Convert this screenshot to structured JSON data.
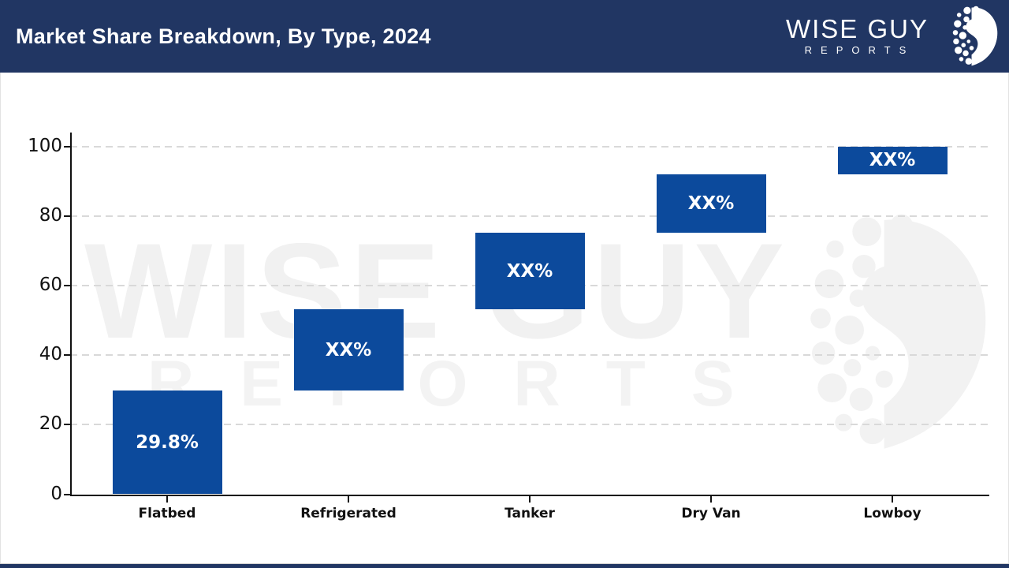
{
  "header": {
    "title": "Market Share Breakdown, By Type, 2024",
    "logo": {
      "line1": "WISE GUY",
      "line2": "REPORTS"
    }
  },
  "watermark": {
    "line1": "WISE GUY",
    "line2": "REPORTS"
  },
  "chart_data": {
    "type": "bar",
    "subtype": "waterfall",
    "title": "Market Share Breakdown, By Type, 2024",
    "categories": [
      "Flatbed",
      "Refrigerated",
      "Tanker",
      "Dry Van",
      "Lowboy"
    ],
    "segments": [
      {
        "category": "Flatbed",
        "start": 0,
        "end": 29.8,
        "label": "29.8%"
      },
      {
        "category": "Refrigerated",
        "start": 29.8,
        "end": 53.2,
        "label": "XX%"
      },
      {
        "category": "Tanker",
        "start": 53.2,
        "end": 75.2,
        "label": "XX%"
      },
      {
        "category": "Dry Van",
        "start": 75.2,
        "end": 92.1,
        "label": "XX%"
      },
      {
        "category": "Lowboy",
        "start": 92.1,
        "end": 100,
        "label": "XX%"
      }
    ],
    "ylabel": "",
    "xlabel": "",
    "yticks": [
      0,
      20,
      40,
      60,
      80,
      100
    ],
    "ylim": [
      0,
      104
    ],
    "grid": "horizontal-dashed",
    "legend": "none"
  },
  "colors": {
    "header_bg": "#213663",
    "bar": "#0c4a9c",
    "gridline": "#d9d9d9",
    "axis": "#111111",
    "bar_label": "#ffffff",
    "watermark": "#f1f1f1"
  }
}
